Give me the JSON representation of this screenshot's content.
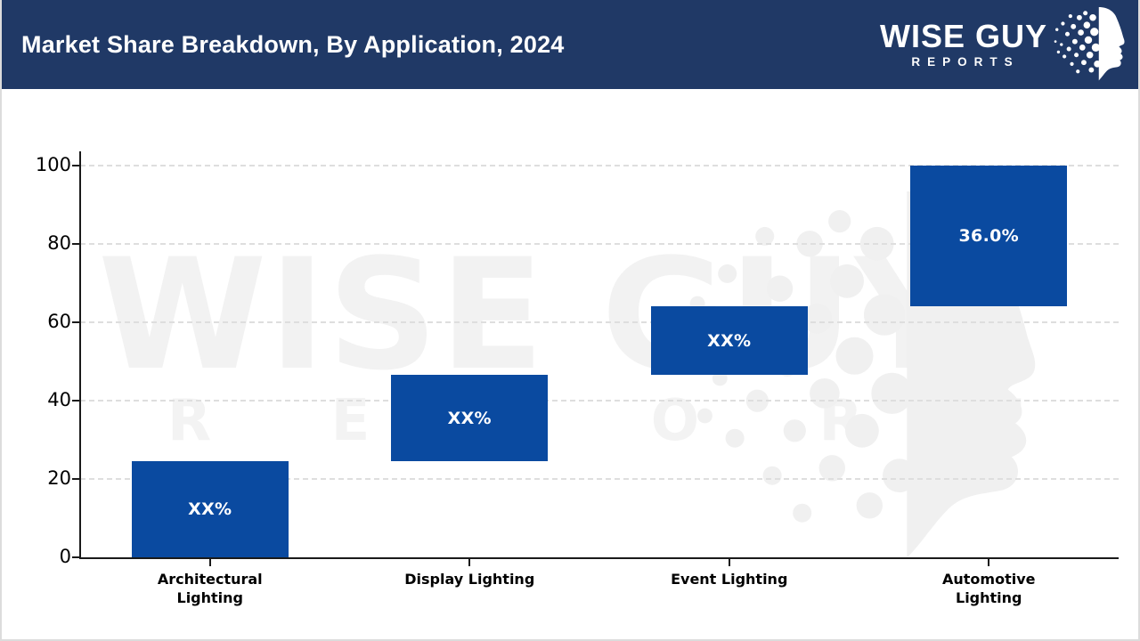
{
  "header": {
    "title": "Market Share Breakdown, By Application, 2024",
    "logo": {
      "line1": "WISE GUY",
      "line2": "REPORTS"
    }
  },
  "watermark": {
    "line1": "WISE GUY",
    "line2": "R E P O R T S"
  },
  "colors": {
    "header_bg": "#203966",
    "bar": "#0a4aa0",
    "bar_label": "#ffffff",
    "gridline": "#dedede",
    "axis": "#1a1a1a",
    "watermark": "#f2f2f2"
  },
  "chart_data": {
    "type": "bar",
    "subtype": "waterfall",
    "title": "Market Share Breakdown, By Application, 2024",
    "categories": [
      "Architectural Lighting",
      "Display Lighting",
      "Event Lighting",
      "Automotive Lighting"
    ],
    "category_display": [
      "Architectural\nLighting",
      "Display Lighting",
      "Event Lighting",
      "Automotive\nLighting"
    ],
    "bars": [
      {
        "category": "Architectural Lighting",
        "label": "XX%",
        "start": 0,
        "end": 24.5
      },
      {
        "category": "Display Lighting",
        "label": "XX%",
        "start": 24.5,
        "end": 46.5
      },
      {
        "category": "Event Lighting",
        "label": "XX%",
        "start": 46.5,
        "end": 64.0
      },
      {
        "category": "Automotive Lighting",
        "label": "36.0%",
        "start": 64.0,
        "end": 100.0,
        "value": 36.0
      }
    ],
    "ylim": [
      0,
      100
    ],
    "yticks": [
      0,
      20,
      40,
      60,
      80,
      100
    ],
    "xlabel": "",
    "ylabel": "",
    "grid": "horizontal-dashed",
    "legend": "none"
  }
}
